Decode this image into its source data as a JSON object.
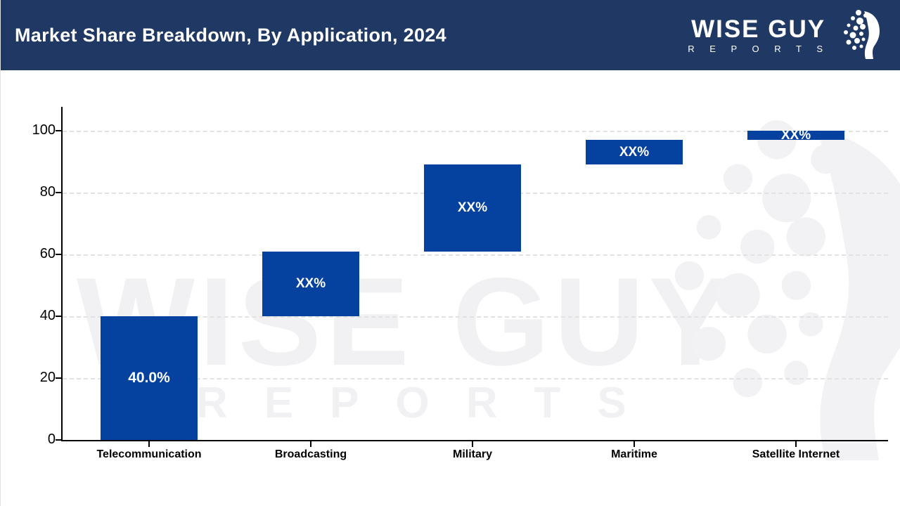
{
  "header": {
    "title": "Market Share Breakdown, By Application, 2024",
    "logo": {
      "line1": "WISE GUY",
      "line2": "R E P O R T S"
    }
  },
  "watermark": {
    "line1": "WISE GUY",
    "line2": "REPORTS"
  },
  "chart_data": {
    "type": "bar",
    "subtype": "waterfall",
    "title": "Market Share Breakdown, By Application, 2024",
    "xlabel": "",
    "ylabel": "",
    "categories": [
      "Telecommunication",
      "Broadcasting",
      "Military",
      "Maritime",
      "Satellite Internet"
    ],
    "segments": [
      {
        "category": "Telecommunication",
        "start": 0,
        "end": 40,
        "label": "40.0%"
      },
      {
        "category": "Broadcasting",
        "start": 40,
        "end": 61,
        "label": "XX%"
      },
      {
        "category": "Military",
        "start": 61,
        "end": 89,
        "label": "XX%"
      },
      {
        "category": "Maritime",
        "start": 89,
        "end": 97,
        "label": "XX%"
      },
      {
        "category": "Satellite Internet",
        "start": 97,
        "end": 100,
        "label": "XX%"
      }
    ],
    "yticks": [
      0,
      20,
      40,
      60,
      80,
      100
    ],
    "ylim": [
      0,
      108
    ],
    "grid": "horizontal-dashed",
    "legend": "none",
    "colors": {
      "bar": "#05419e",
      "header_background": "#1f3864",
      "axis": "#000000",
      "gridline": "#e2e2e2",
      "bar_label_text": "#ffffff",
      "watermark": "#f1f1f3"
    }
  }
}
